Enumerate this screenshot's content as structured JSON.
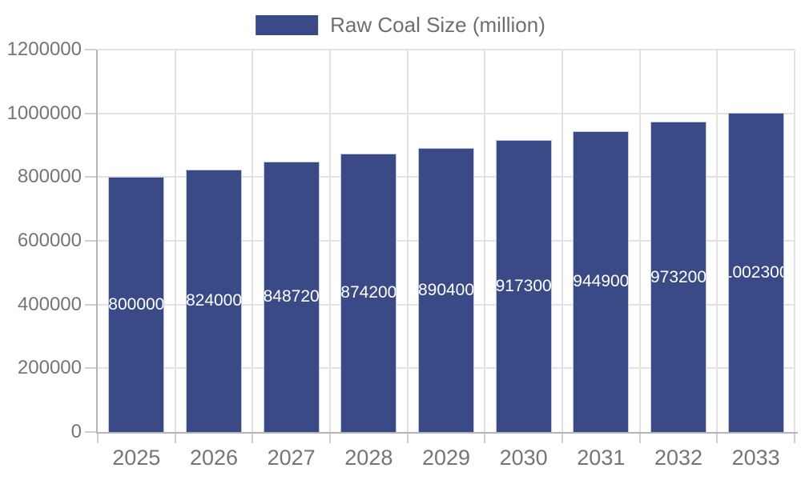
{
  "chart_data": {
    "type": "bar",
    "title": "",
    "legend_entries": [
      "Raw Coal Size (million)"
    ],
    "legend_position": "top-center",
    "categories": [
      "2025",
      "2026",
      "2027",
      "2028",
      "2029",
      "2030",
      "2031",
      "2032",
      "2033"
    ],
    "series": [
      {
        "name": "Raw Coal Size (million)",
        "values": [
          800000,
          824000,
          848720,
          874200,
          890400,
          917300,
          944900,
          973200,
          1002300
        ]
      }
    ],
    "bar_value_labels": [
      "800000",
      "824000",
      "848720",
      "874200",
      "890400",
      "917300",
      "944900",
      "973200",
      "1002300"
    ],
    "xlabel": "",
    "ylabel": "",
    "ylim": [
      0,
      1200000
    ],
    "yticks": [
      0,
      200000,
      400000,
      600000,
      800000,
      1000000,
      1200000
    ],
    "ytick_labels": [
      "0",
      "200000",
      "400000",
      "600000",
      "800000",
      "1000000",
      "1200000"
    ],
    "grid": "on",
    "value_label_position": "inside-center"
  },
  "legend": {
    "label": "Raw Coal Size (million)"
  },
  "colors": {
    "bar_fill": "#3A4A87",
    "bar_border": "#C3C9DA",
    "grid_line": "#E2E2E2",
    "axis_line": "#B3B3B8",
    "tick_mark": "#CFCFCF",
    "tick_label_text": "#757575",
    "legend_text": "#6E6E6E",
    "bar_value_text": "#FFFFFF",
    "background": "#FFFFFF"
  }
}
